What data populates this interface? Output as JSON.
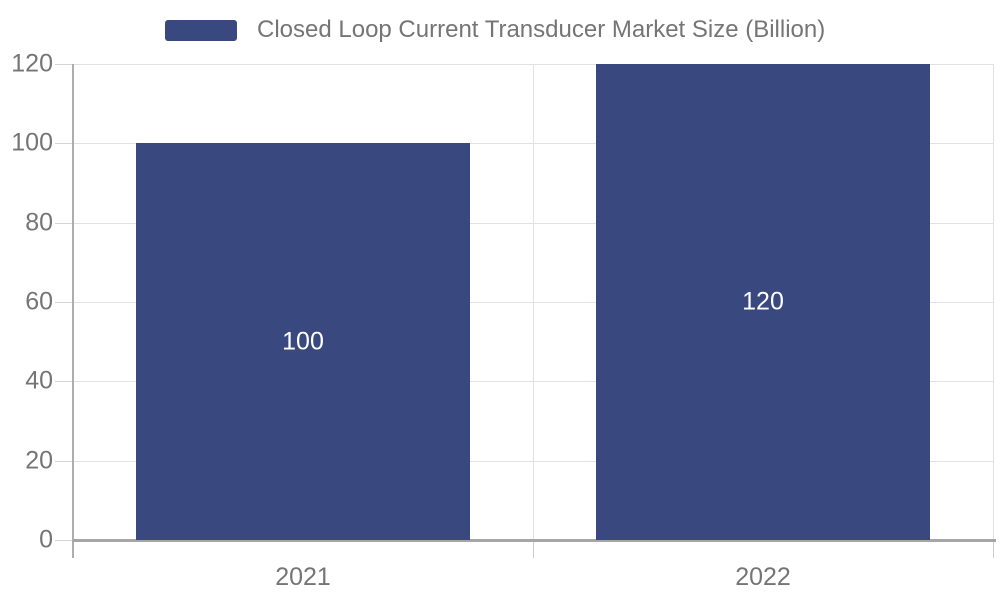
{
  "legend": {
    "label": "Closed Loop Current Transducer Market Size (Billion)"
  },
  "chart_data": {
    "type": "bar",
    "title": "Closed Loop Current Transducer Market Size (Billion)",
    "categories": [
      "2021",
      "2022"
    ],
    "series": [
      {
        "name": "Closed Loop Current Transducer Market Size (Billion)",
        "values": [
          100,
          120
        ],
        "data_labels": [
          "100",
          "120"
        ]
      }
    ],
    "xlabel": "",
    "ylabel": "",
    "ylim": [
      0,
      120
    ],
    "yticks": [
      0,
      20,
      40,
      60,
      80,
      100,
      120
    ],
    "grid": true,
    "legend_position": "top",
    "colors": {
      "bar": "#39497F",
      "axis_text": "#757575",
      "data_label": "#ffffff",
      "gridline": "#e2e2e2",
      "axis_line": "#a6a6a6"
    }
  }
}
